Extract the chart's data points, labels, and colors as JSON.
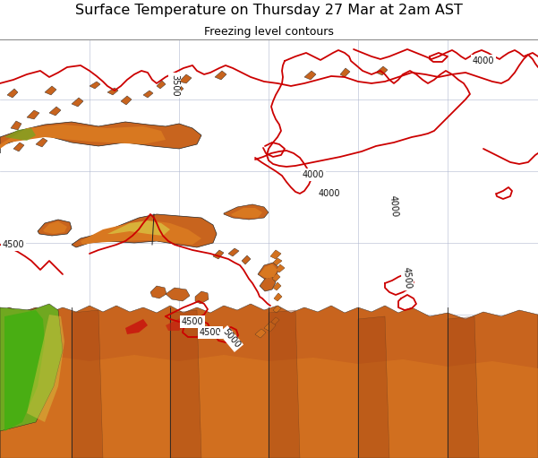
{
  "title": "Surface Temperature on Thursday 27 Mar at 2am AST",
  "subtitle": "Freezing level contours",
  "title_fontsize": 11.5,
  "subtitle_fontsize": 9,
  "fig_width": 6.01,
  "fig_height": 5.11,
  "dpi": 100,
  "background_color": "#ffffff",
  "ocean_color": "#cdd4e8",
  "contour_color": "#cc0000",
  "grid_color": "#b0b8d0",
  "title_color": "#000000",
  "label_fontsize": 7,
  "contour_linewidth": 1.3,
  "land_brown": "#c8641e",
  "land_dark_brown": "#a04010",
  "land_orange": "#d87820",
  "land_yellow": "#d8c040",
  "land_green": "#70a820",
  "land_bright_green": "#40b010",
  "land_red": "#c82010",
  "border_color": "#222222"
}
